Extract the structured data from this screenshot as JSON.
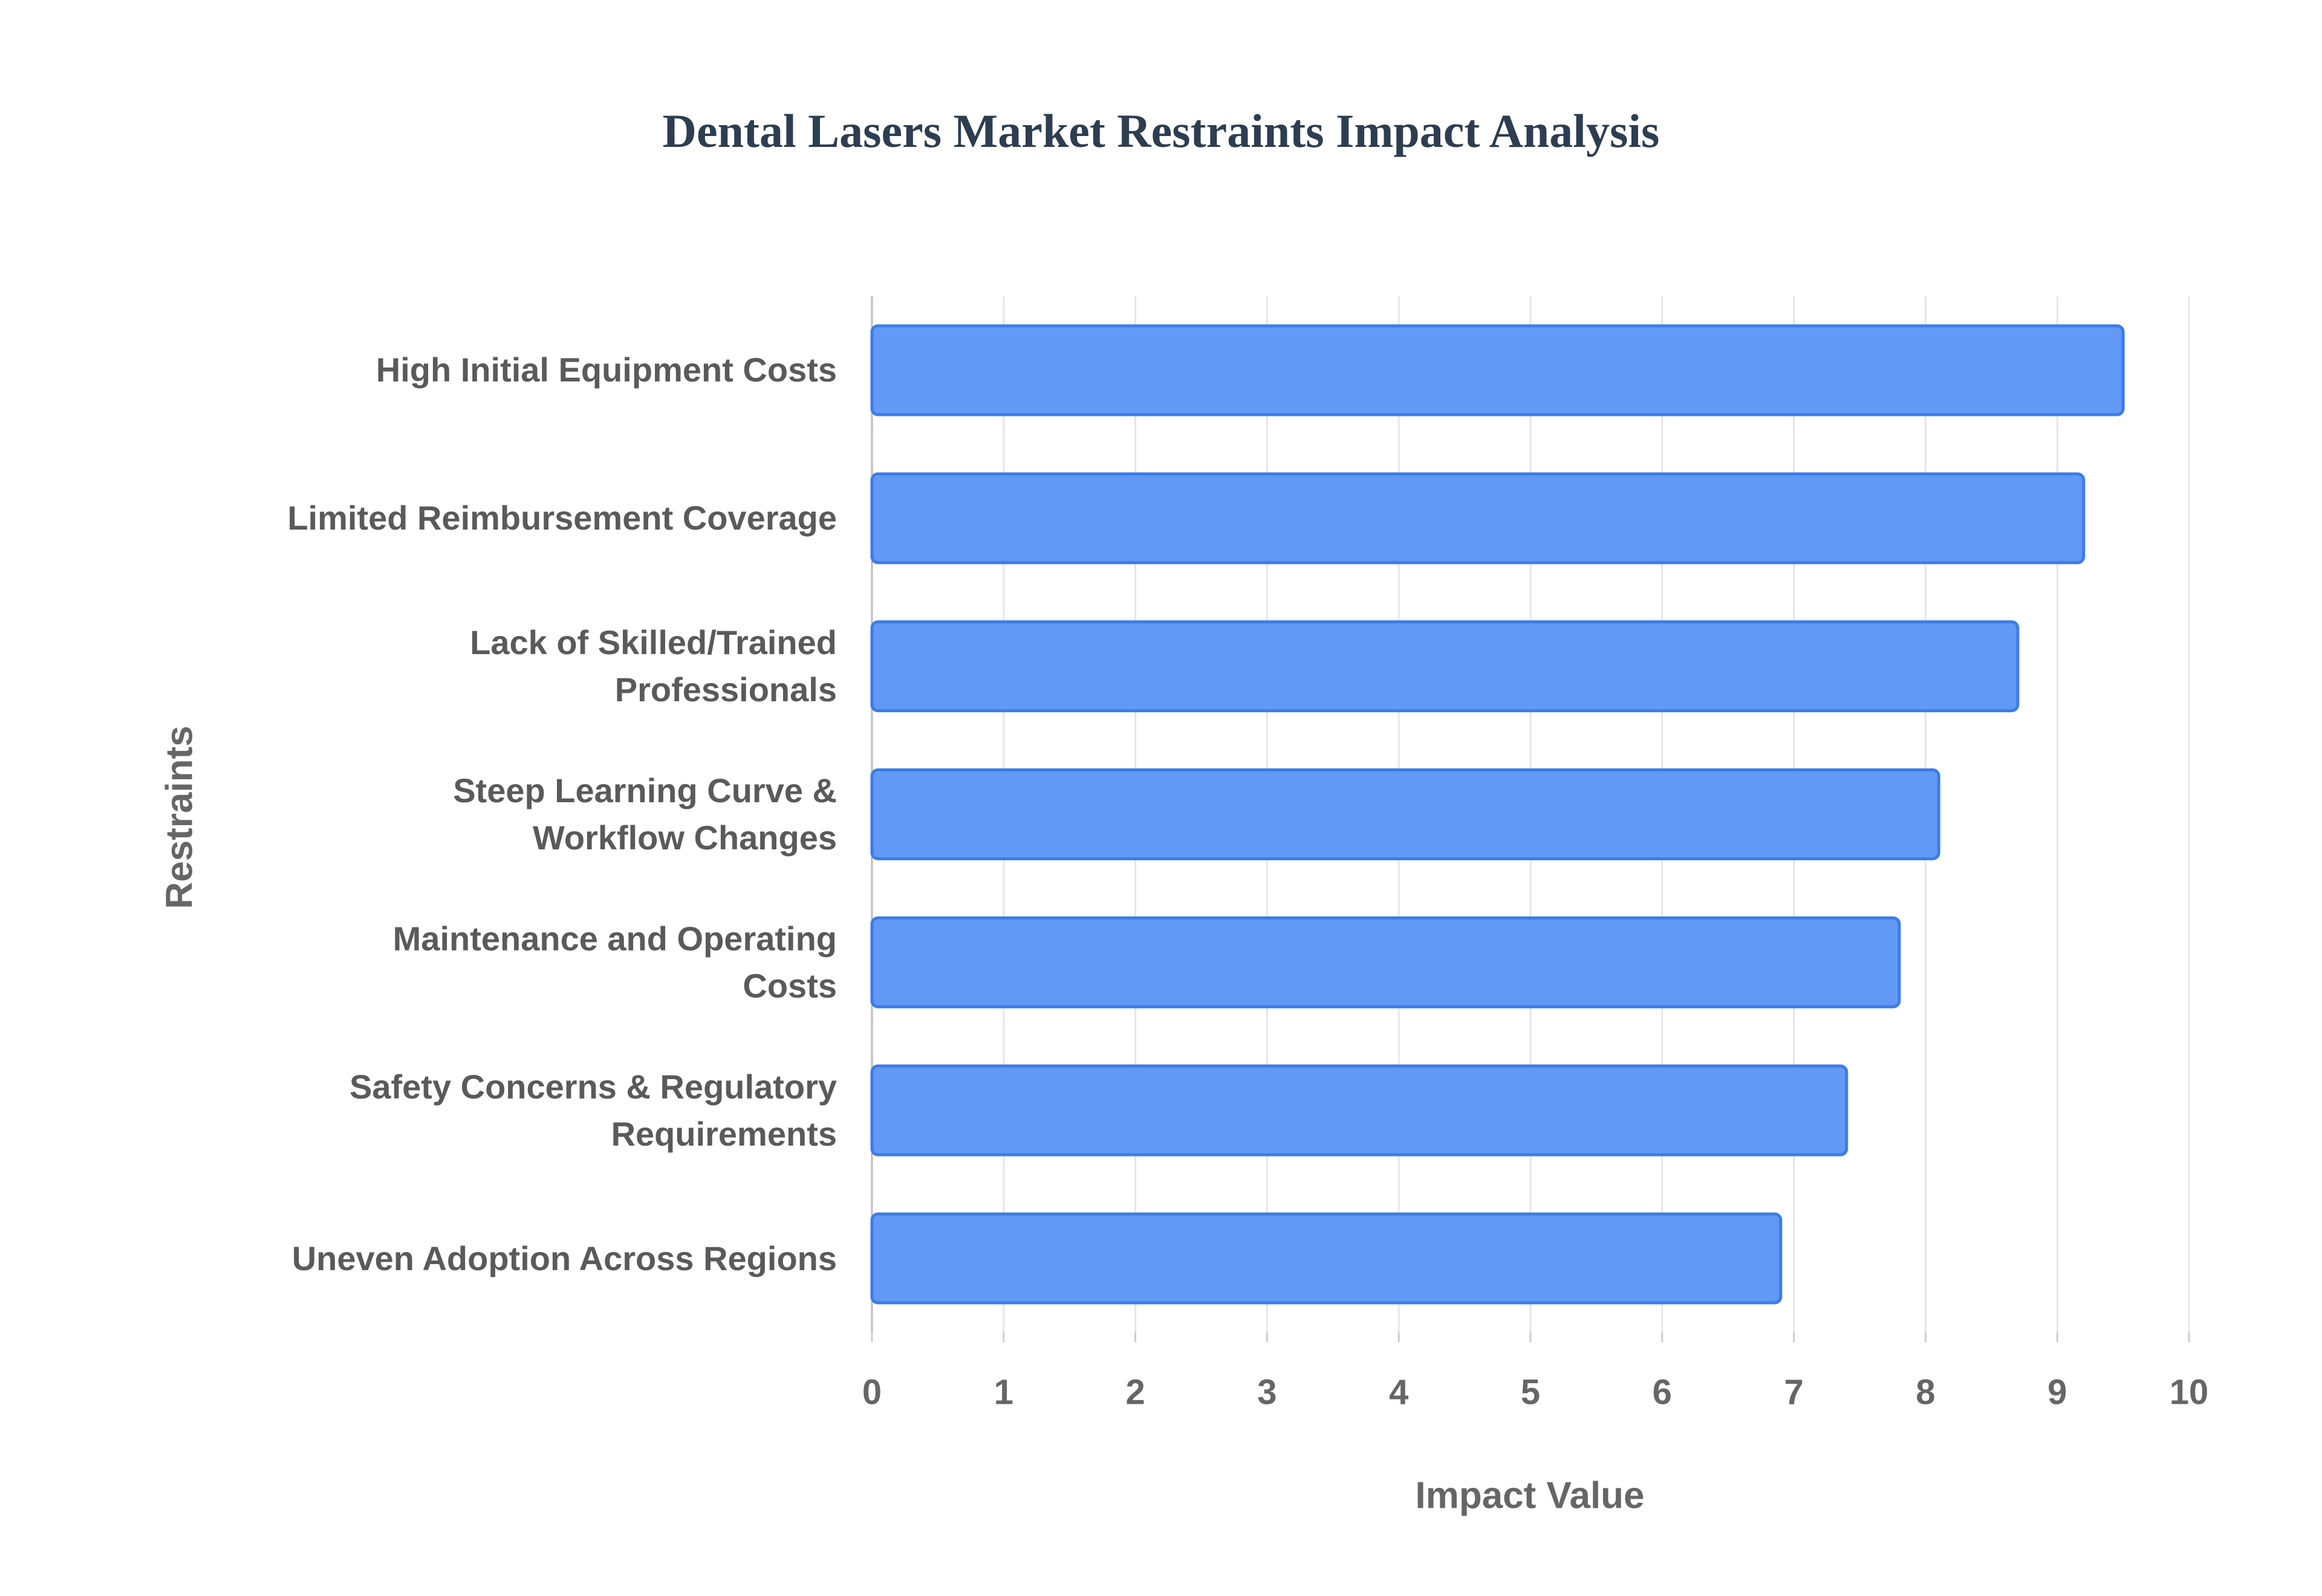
{
  "chart_data": {
    "type": "bar",
    "orientation": "horizontal",
    "title": "Dental Lasers Market Restraints Impact Analysis",
    "x_label": "Impact Value",
    "y_label": "Restraints",
    "categories": [
      "High Initial Equipment Costs",
      "Limited Reimbursement Coverage",
      "Lack of Skilled/Trained\nProfessionals",
      "Steep Learning Curve &\nWorkflow Changes",
      "Maintenance and Operating\nCosts",
      "Safety Concerns & Regulatory\nRequirements",
      "Uneven Adoption Across Regions"
    ],
    "values": [
      9.5,
      9.2,
      8.7,
      8.1,
      7.8,
      7.4,
      6.9
    ],
    "color": "#6199f5",
    "edge_color": "#3b7de8",
    "xlim": [
      0,
      10
    ],
    "xticks": [
      0,
      1,
      2,
      3,
      4,
      5,
      6,
      7,
      8,
      9,
      10
    ],
    "grid": true
  }
}
